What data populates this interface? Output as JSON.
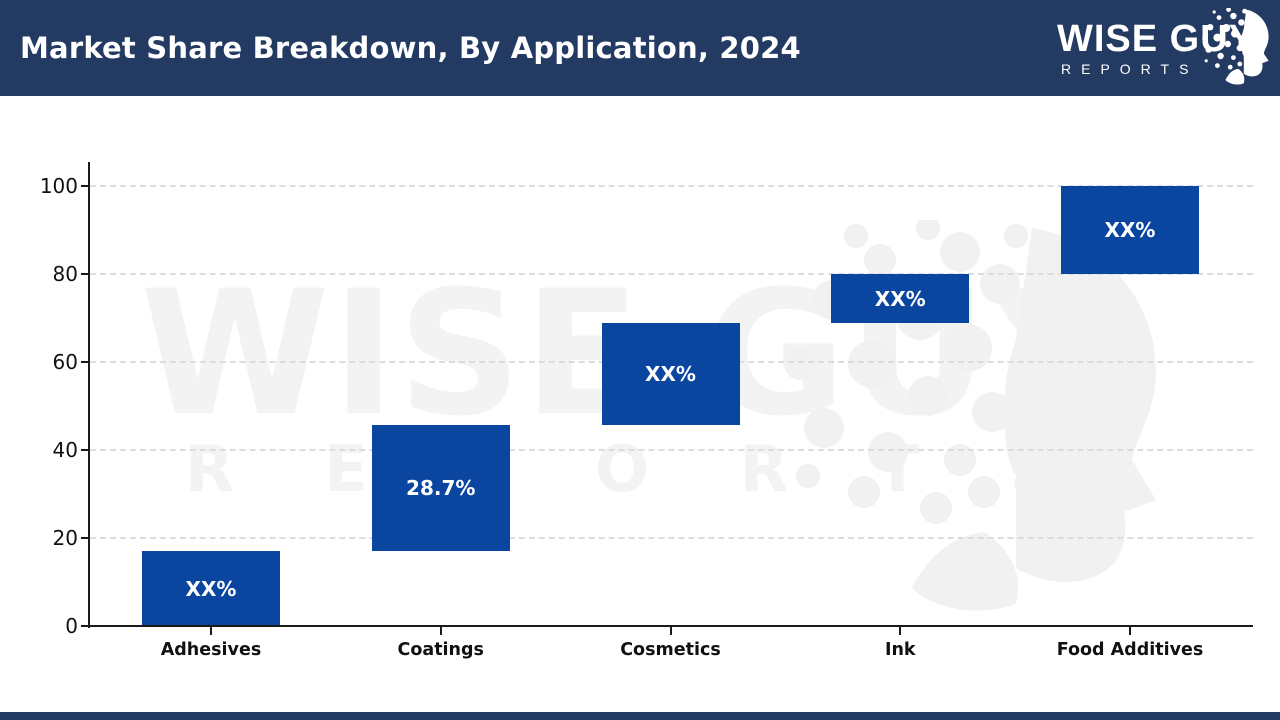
{
  "header": {
    "title": "Market Share Breakdown, By Application, 2024",
    "brand": {
      "line1": "WISE GUY",
      "line2": "REPORTS"
    }
  },
  "watermark": {
    "line1": "WISE GUY",
    "line2": "REPORTS"
  },
  "colors": {
    "header_bg": "#233a63",
    "footer_bg": "#233a63",
    "bar": "#0a46a0",
    "bar_label": "#ffffff",
    "grid": "#dcdcdc",
    "axis": "#1a1a1a",
    "watermark": "#f3f3f3"
  },
  "chart_data": {
    "type": "bar",
    "subtype": "waterfall",
    "title": "Market Share Breakdown, By Application, 2024",
    "categories": [
      "Adhesives",
      "Coatings",
      "Cosmetics",
      "Ink",
      "Food Additives"
    ],
    "segments": [
      {
        "category": "Adhesives",
        "start": 0,
        "end": 17,
        "value_label": "XX%"
      },
      {
        "category": "Coatings",
        "start": 17,
        "end": 45.7,
        "value_label": "28.7%",
        "value": 28.7
      },
      {
        "category": "Cosmetics",
        "start": 45.7,
        "end": 68.8,
        "value_label": "XX%"
      },
      {
        "category": "Ink",
        "start": 68.8,
        "end": 80,
        "value_label": "XX%"
      },
      {
        "category": "Food Additives",
        "start": 80,
        "end": 100,
        "value_label": "XX%"
      }
    ],
    "yticks": [
      0,
      20,
      40,
      60,
      80,
      100
    ],
    "ylim": [
      0,
      105
    ],
    "xlabel": "",
    "ylabel": "",
    "grid": "dashed-horizontal",
    "legend": "none"
  }
}
